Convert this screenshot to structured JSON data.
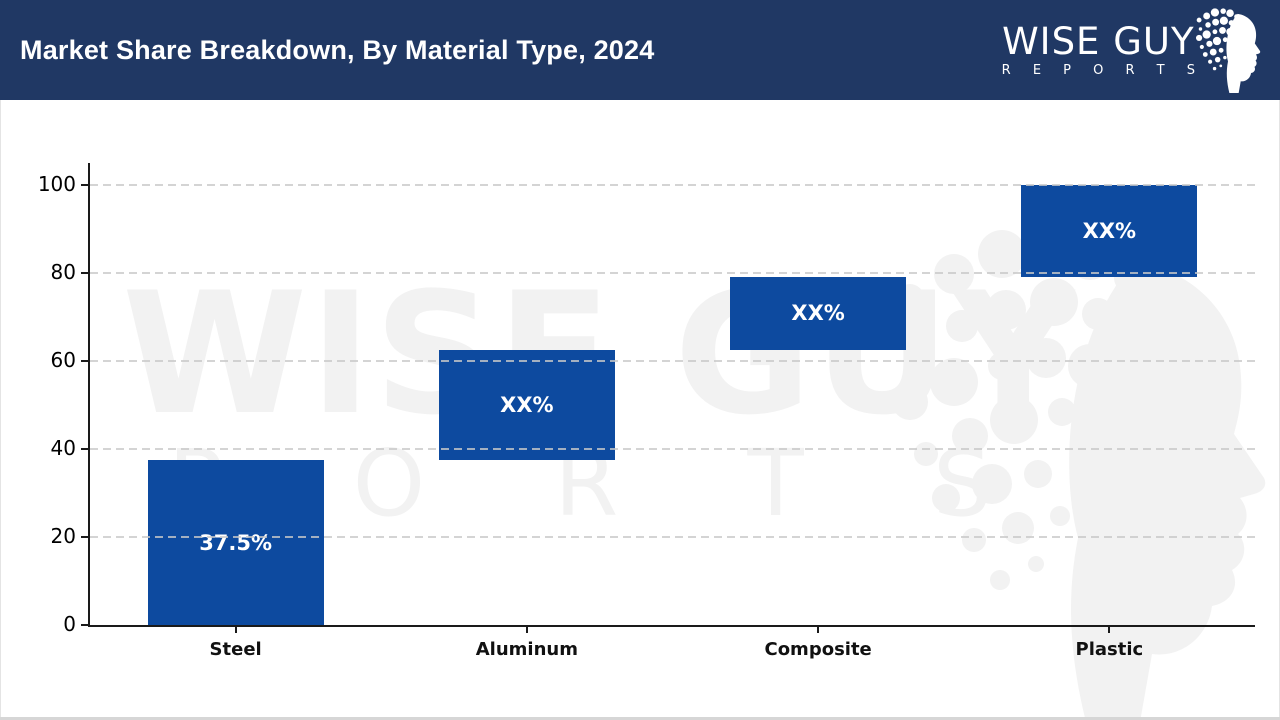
{
  "header": {
    "title": "Market Share Breakdown, By Material Type, 2024",
    "bg_color": "#203864",
    "logo": {
      "line1": "WISE GUY",
      "line2": "R E P O R T S"
    }
  },
  "watermark": {
    "line1": "WISE GUY",
    "line2": "P O R T S"
  },
  "chart_data": {
    "type": "bar",
    "subtype": "waterfall",
    "title": "Market Share Breakdown, By Material Type, 2024",
    "categories": [
      "Steel",
      "Aluminum",
      "Composite",
      "Plastic"
    ],
    "segments": [
      {
        "category": "Steel",
        "start": 0,
        "end": 37.5,
        "label": "37.5%"
      },
      {
        "category": "Aluminum",
        "start": 37.5,
        "end": 62.5,
        "label": "XX%"
      },
      {
        "category": "Composite",
        "start": 62.5,
        "end": 79.2,
        "label": "XX%"
      },
      {
        "category": "Plastic",
        "start": 79.2,
        "end": 100,
        "label": "XX%"
      }
    ],
    "yticks": [
      0,
      20,
      40,
      60,
      80,
      100
    ],
    "ylim": [
      0,
      100
    ],
    "xlabel": "",
    "ylabel": "",
    "grid": "horizontal-dashed",
    "legend": "none",
    "bar_color": "#0d4a9f",
    "bar_label_color": "#ffffff",
    "axis_color": "#1a1a1a",
    "grid_color": "#c9c9c9"
  }
}
